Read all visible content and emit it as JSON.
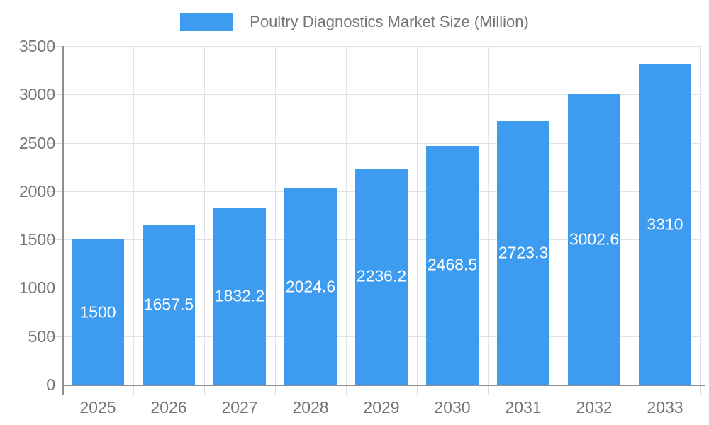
{
  "chart_data": {
    "type": "bar",
    "title": "Poultry Diagnostics Market Size (Million)",
    "xlabel": "",
    "ylabel": "",
    "categories": [
      "2025",
      "2026",
      "2027",
      "2028",
      "2029",
      "2030",
      "2031",
      "2032",
      "2033"
    ],
    "values": [
      1500,
      1657.5,
      1832.2,
      2024.6,
      2236.2,
      2468.5,
      2723.3,
      3002.6,
      3310
    ],
    "value_labels": [
      "1500",
      "1657.5",
      "1832.2",
      "2024.6",
      "2236.2",
      "2468.5",
      "2723.3",
      "3002.6",
      "3310"
    ],
    "y_ticks": [
      0,
      500,
      1000,
      1500,
      2000,
      2500,
      3000,
      3500
    ],
    "ylim": [
      0,
      3500
    ],
    "grid": true,
    "legend_position": "top",
    "legend_entries": [
      "Poultry Diagnostics Market Size (Million)"
    ],
    "colors": {
      "bar": "#3d9bf0",
      "bar_label_text": "#ffffff",
      "axis_text": "#757575",
      "grid_line": "#e3e3e3",
      "tick_line": "#d9d9d9",
      "axis_line": "#8f8f8f",
      "background": "#ffffff"
    }
  }
}
